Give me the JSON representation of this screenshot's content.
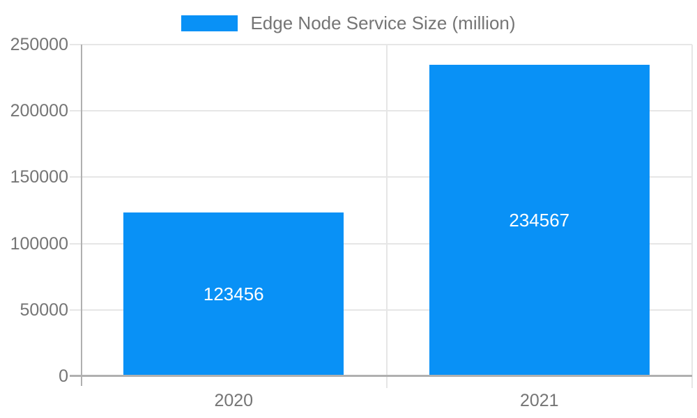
{
  "chart_data": {
    "type": "bar",
    "title": "",
    "xlabel": "",
    "ylabel": "",
    "categories": [
      "2020",
      "2021"
    ],
    "series": [
      {
        "name": "Edge Node Service Size (million)",
        "color": "#0991f6",
        "values": [
          123456,
          234567
        ]
      }
    ],
    "bar_value_labels": [
      "123456",
      "234567"
    ],
    "ylim": [
      0,
      250000
    ],
    "yticks": [
      {
        "value": 0,
        "label": "0"
      },
      {
        "value": 50000,
        "label": "50000"
      },
      {
        "value": 100000,
        "label": "100000"
      },
      {
        "value": 150000,
        "label": "150000"
      },
      {
        "value": 200000,
        "label": "200000"
      },
      {
        "value": 250000,
        "label": "250000"
      }
    ],
    "grid": true,
    "legend_position": "top"
  },
  "legend": {
    "items": [
      {
        "label": "Edge Node Service Size (million)",
        "swatch_color": "#0991f6"
      }
    ]
  },
  "colors": {
    "bar": "#0991f6",
    "gridline": "#e6e6e6",
    "axis_line": "#b0b0b0",
    "tick_text": "#757575",
    "bar_label_text": "#ffffff",
    "background": "#ffffff"
  }
}
